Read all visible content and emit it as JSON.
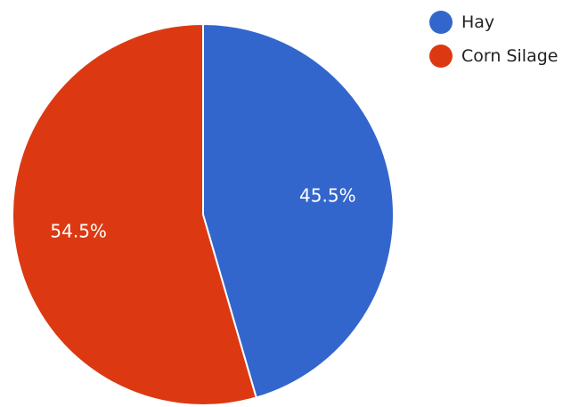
{
  "chart_data": {
    "type": "pie",
    "start_angle_deg": 0,
    "direction": "clockwise",
    "slices": [
      {
        "name": "Hay",
        "value": 45.5,
        "label": "45.5%",
        "color": "#3366cc"
      },
      {
        "name": "Corn Silage",
        "value": 54.5,
        "label": "54.5%",
        "color": "#dc3912"
      }
    ],
    "legend_position": "top-right"
  }
}
